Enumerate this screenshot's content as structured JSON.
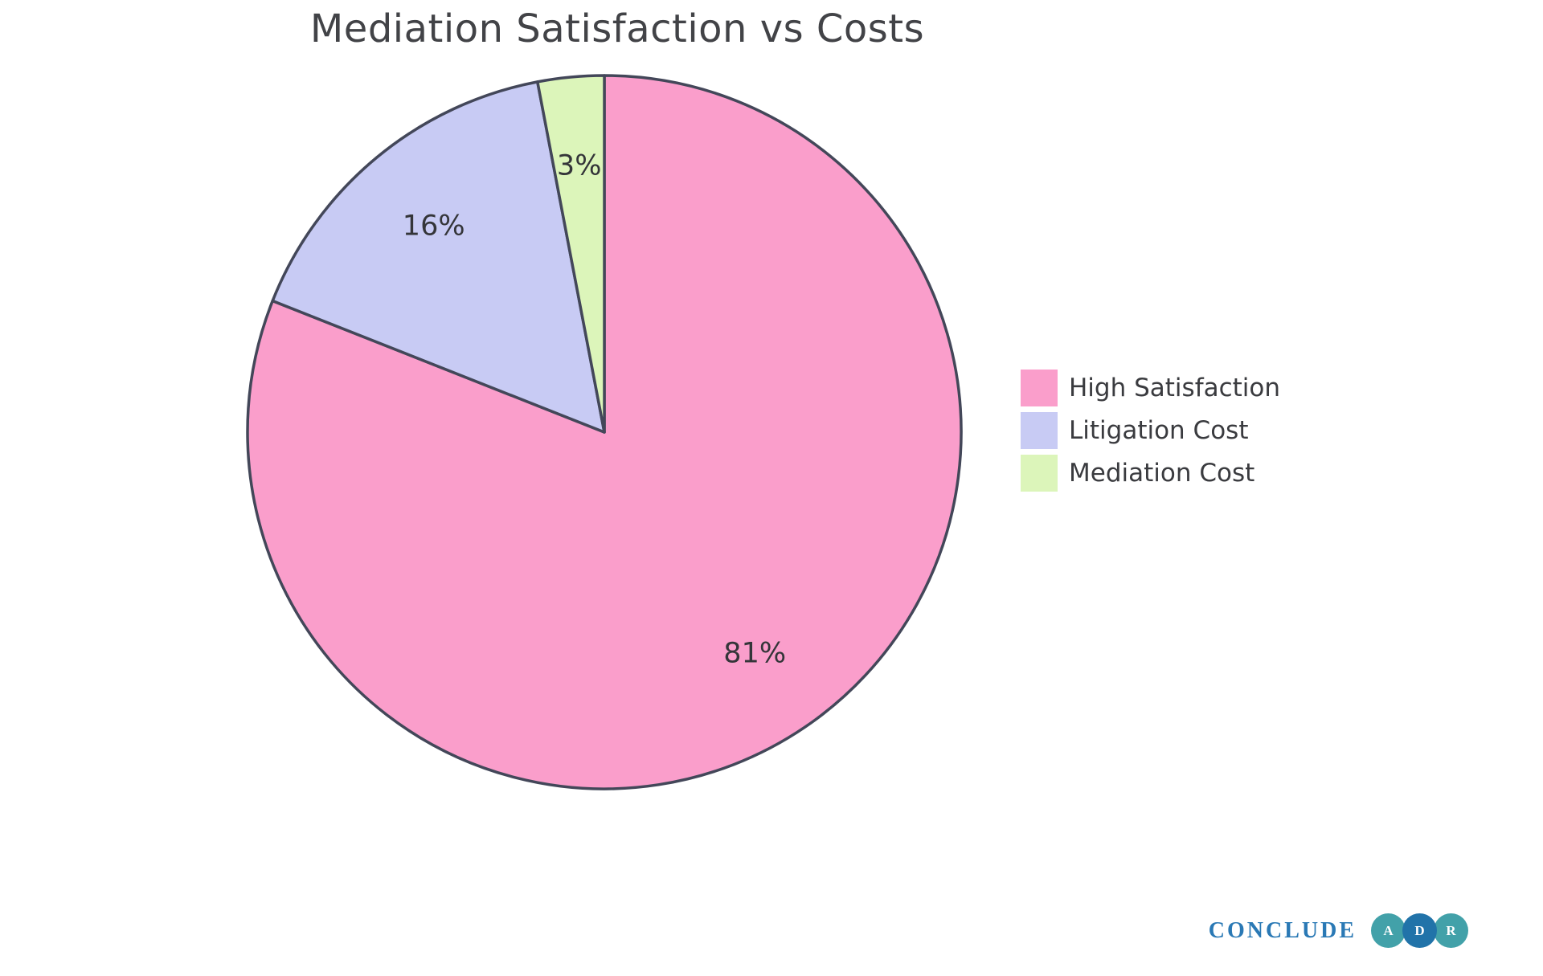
{
  "chart_data": {
    "type": "pie",
    "title": "Mediation Satisfaction vs Costs",
    "slices": [
      {
        "label": "High Satisfaction",
        "value": 81,
        "pct_label": "81%",
        "color": "#FA9ECB"
      },
      {
        "label": "Litigation Cost",
        "value": 16,
        "pct_label": "16%",
        "color": "#C8CBF4"
      },
      {
        "label": "Mediation Cost",
        "value": 3,
        "pct_label": "3%",
        "color": "#DCF5BA"
      }
    ],
    "start_angle": "12 o'clock",
    "direction": "clockwise",
    "slice_outline_color": "#434759",
    "label_color": "#343539",
    "title_color": "#424347",
    "legend_position": "right",
    "background_color": "#ffffff"
  },
  "branding": {
    "wordmark": "CONCLUDE",
    "wordmark_color": "#2a79b5",
    "badge_letters": [
      "A",
      "D",
      "R"
    ],
    "badge_colors": [
      "#42A1A9",
      "#2173A9",
      "#42A1A9"
    ]
  }
}
